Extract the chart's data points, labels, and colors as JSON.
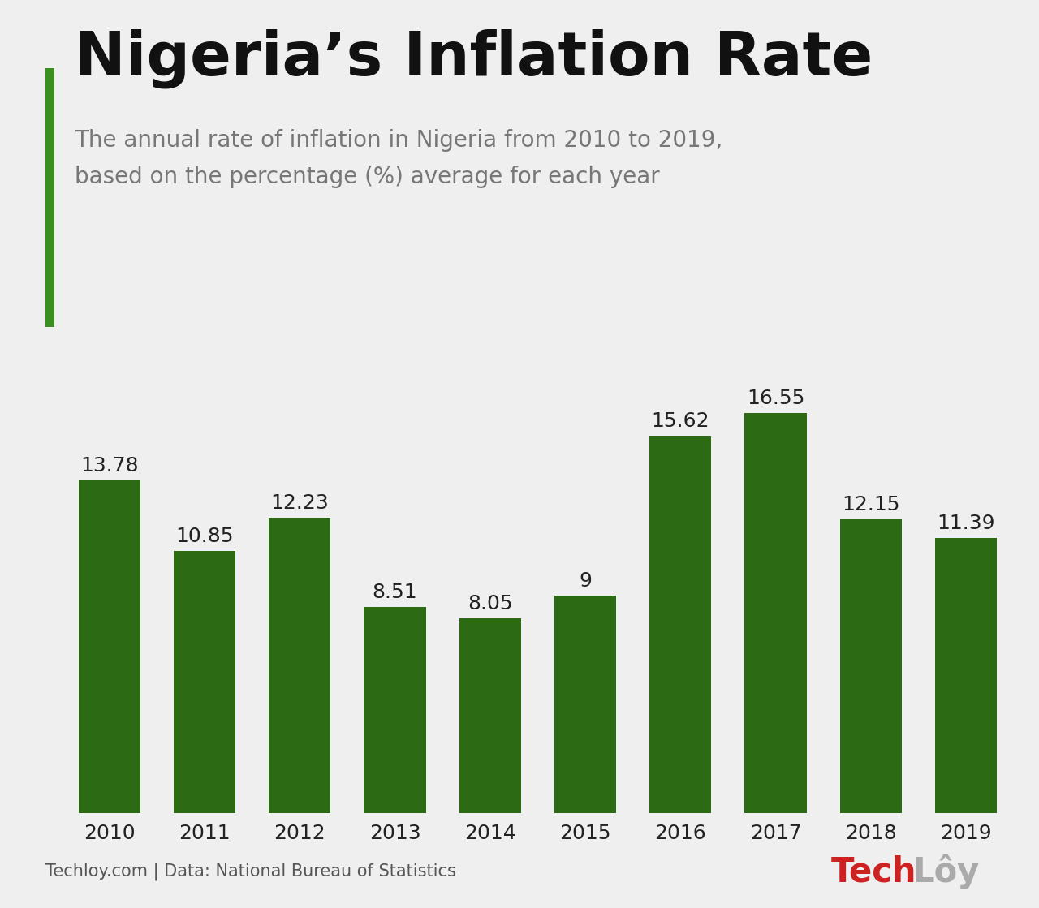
{
  "title": "Nigeria’s Inflation Rate",
  "subtitle_line1": "The annual rate of inflation in Nigeria from 2010 to 2019,",
  "subtitle_line2": "based on the percentage (%) average for each year",
  "years": [
    "2010",
    "2011",
    "2012",
    "2013",
    "2014",
    "2015",
    "2016",
    "2017",
    "2018",
    "2019"
  ],
  "values": [
    13.78,
    10.85,
    12.23,
    8.51,
    8.05,
    9.0,
    15.62,
    16.55,
    12.15,
    11.39
  ],
  "bar_color": "#2d6a14",
  "background_color": "#efefef",
  "title_color": "#111111",
  "subtitle_color": "#777777",
  "label_color": "#222222",
  "accent_green": "#3a8f1e",
  "footer_text": "Techloy.com | Data: National Bureau of Statistics",
  "footer_color": "#555555",
  "title_fontsize": 54,
  "subtitle_fontsize": 20,
  "bar_label_fontsize": 18,
  "xtick_fontsize": 18,
  "footer_fontsize": 15,
  "ylim": [
    0,
    19
  ],
  "tech_color": "#cc2222",
  "loy_color": "#aaaaaa",
  "logo_fontsize": 30
}
